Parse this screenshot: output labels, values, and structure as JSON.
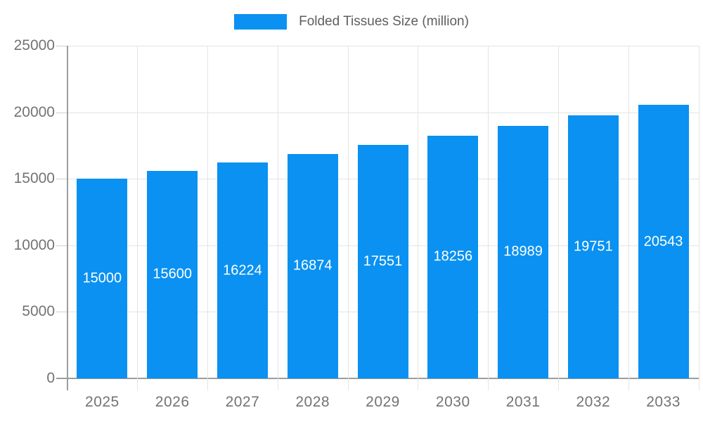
{
  "chart_data": {
    "type": "bar",
    "title": "",
    "legend_label": "Folded Tissues Size (million)",
    "legend_position": "top-center",
    "categories": [
      "2025",
      "2026",
      "2027",
      "2028",
      "2029",
      "2030",
      "2031",
      "2032",
      "2033"
    ],
    "values": [
      15000,
      15600,
      16224,
      16874,
      17551,
      18256,
      18989,
      19751,
      20543
    ],
    "xlabel": "",
    "ylabel": "",
    "ylim": [
      0,
      25000
    ],
    "yticks": [
      0,
      5000,
      10000,
      15000,
      20000,
      25000
    ],
    "grid": true,
    "bar_color": "#0a91f1",
    "value_label_color": "#ffffff"
  }
}
